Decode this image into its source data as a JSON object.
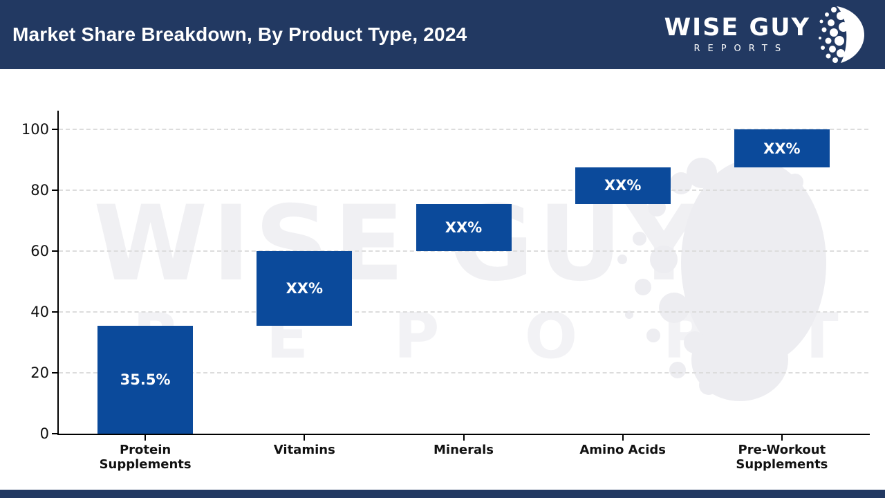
{
  "header": {
    "title": "Market Share Breakdown, By Product Type, 2024",
    "bg_color": "#223962",
    "logo": {
      "line1": "WISE GUY",
      "line2": "REPORTS"
    }
  },
  "watermark": {
    "line1": "WISE GUY",
    "line2": "R E P O R T S"
  },
  "footer": {
    "bg_color": "#223962"
  },
  "chart_data": {
    "type": "bar",
    "subtype": "waterfall",
    "title": "Market Share Breakdown, By Product Type, 2024",
    "categories": [
      "Protein Supplements",
      "Vitamins",
      "Minerals",
      "Amino Acids",
      "Pre-Workout Supplements"
    ],
    "category_label_lines": [
      [
        "Protein",
        "Supplements"
      ],
      [
        "Vitamins"
      ],
      [
        "Minerals"
      ],
      [
        "Amino Acids"
      ],
      [
        "Pre-Workout",
        "Supplements"
      ]
    ],
    "series": [
      {
        "name": "Market Share (%)",
        "segments": [
          {
            "category": "Protein Supplements",
            "start": 0,
            "end": 35.5,
            "label": "35.5%"
          },
          {
            "category": "Vitamins",
            "start": 35.5,
            "end": 60,
            "label": "XX%"
          },
          {
            "category": "Minerals",
            "start": 60,
            "end": 75.5,
            "label": "XX%"
          },
          {
            "category": "Amino Acids",
            "start": 75.5,
            "end": 87.5,
            "label": "XX%"
          },
          {
            "category": "Pre-Workout Supplements",
            "start": 87.5,
            "end": 100,
            "label": "XX%"
          }
        ]
      }
    ],
    "xlabel": "",
    "ylabel": "",
    "y_ticks": [
      0,
      20,
      40,
      60,
      80,
      100
    ],
    "ylim": [
      0,
      105
    ],
    "grid": "horizontal-dashed",
    "legend": "none",
    "bar_color": "#0B4A9B",
    "bar_label_color": "#ffffff",
    "gridline_color": "#dcdcdc",
    "axis_color": "#000000",
    "tick_label_color": "#111111"
  }
}
